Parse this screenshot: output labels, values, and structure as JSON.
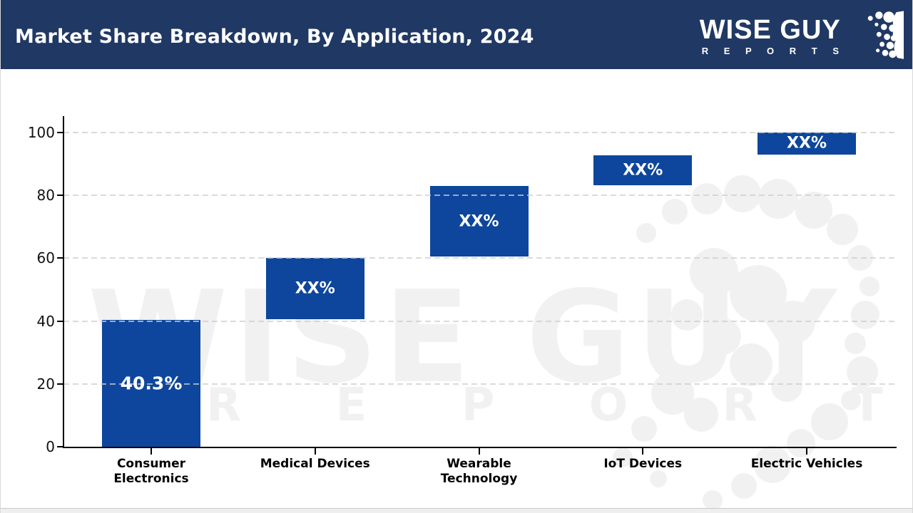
{
  "header": {
    "title": "Market Share Breakdown, By Application, 2024",
    "logo": {
      "name_line": "WISE GUY",
      "sub_line": "R E P O R T S"
    }
  },
  "watermark": {
    "line1": "WISE GUY",
    "line2": "R E P O R T S"
  },
  "colors": {
    "header_bg": "#203864",
    "bar_blue": "#0d469c",
    "grid_gray": "#d9d9d9",
    "axis_black": "#000000",
    "bar_label_white": "#ffffff",
    "watermark_gray": "#f1f1f1"
  },
  "chart_data": {
    "type": "bar",
    "subtype": "waterfall",
    "title": "Market Share Breakdown, By Application, 2024",
    "categories": [
      "Consumer Electronics",
      "Medical Devices",
      "Wearable Technology",
      "IoT Devices",
      "Electric Vehicles"
    ],
    "category_label_lines": [
      [
        "Consumer",
        "Electronics"
      ],
      [
        "Medical Devices"
      ],
      [
        "Wearable",
        "Technology"
      ],
      [
        "IoT Devices"
      ],
      [
        "Electric Vehicles"
      ]
    ],
    "series": [
      {
        "name": "Market share (%)",
        "segments": [
          {
            "category": "Consumer Electronics",
            "start": 0,
            "end": 40.3,
            "label": "40.3%"
          },
          {
            "category": "Medical Devices",
            "start": 40.5,
            "end": 60.2,
            "label": "XX%"
          },
          {
            "category": "Wearable Technology",
            "start": 60.5,
            "end": 82.9,
            "label": "XX%"
          },
          {
            "category": "IoT Devices",
            "start": 83.2,
            "end": 92.8,
            "label": "XX%"
          },
          {
            "category": "Electric Vehicles",
            "start": 93.0,
            "end": 100.0,
            "label": "XX%"
          }
        ]
      }
    ],
    "ylim": [
      0,
      100
    ],
    "yticks": [
      0,
      20,
      40,
      60,
      80,
      100
    ],
    "grid": "horizontal-dashed",
    "legend": "none"
  }
}
